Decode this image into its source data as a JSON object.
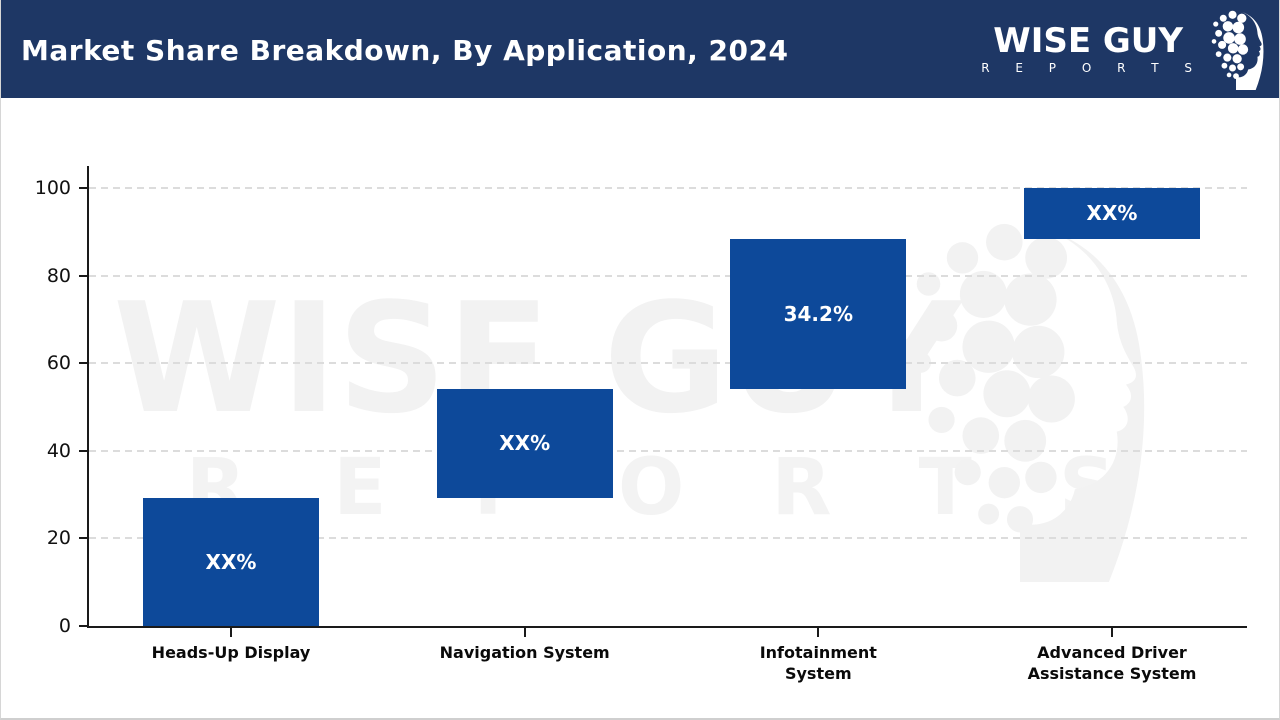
{
  "header": {
    "title": "Market Share Breakdown, By Application, 2024",
    "bg_color": "#1e3765",
    "logo": {
      "wordmark": "WISE GUY",
      "subtitle": "R E P O R T S"
    }
  },
  "watermark": {
    "wordmark": "WISE GUY",
    "subtitle": "R E P O R T S"
  },
  "chart_data": {
    "type": "bar",
    "subtype": "floating-segment-waterfall",
    "title": "Market Share Breakdown, By Application, 2024",
    "categories": [
      "Heads-Up Display",
      "Navigation System",
      "Infotainment System",
      "Advanced Driver Assistance System"
    ],
    "x_tick_label_lines": [
      [
        "Heads-Up Display"
      ],
      [
        "Navigation System"
      ],
      [
        "Infotainment",
        "System"
      ],
      [
        "Advanced Driver",
        "Assistance System"
      ]
    ],
    "segments": [
      {
        "category": "Heads-Up Display",
        "start": 0,
        "end": 29.2,
        "label": "XX%"
      },
      {
        "category": "Navigation System",
        "start": 29.2,
        "end": 54.2,
        "label": "XX%"
      },
      {
        "category": "Infotainment System",
        "start": 54.2,
        "end": 88.4,
        "label": "34.2%"
      },
      {
        "category": "Advanced Driver Assistance System",
        "start": 88.4,
        "end": 100,
        "label": "XX%"
      }
    ],
    "y_ticks": [
      0,
      20,
      40,
      60,
      80,
      100
    ],
    "ylim": [
      0,
      105
    ],
    "xlabel": "",
    "ylabel": "",
    "grid": true,
    "gridline_style": "dashed",
    "legend": false,
    "bar_color": "#0d499a",
    "bar_label_color": "#ffffff",
    "axis_color": "#1a1a1a",
    "grid_color": "#dcdcdc",
    "tick_label_color": "#111111"
  }
}
